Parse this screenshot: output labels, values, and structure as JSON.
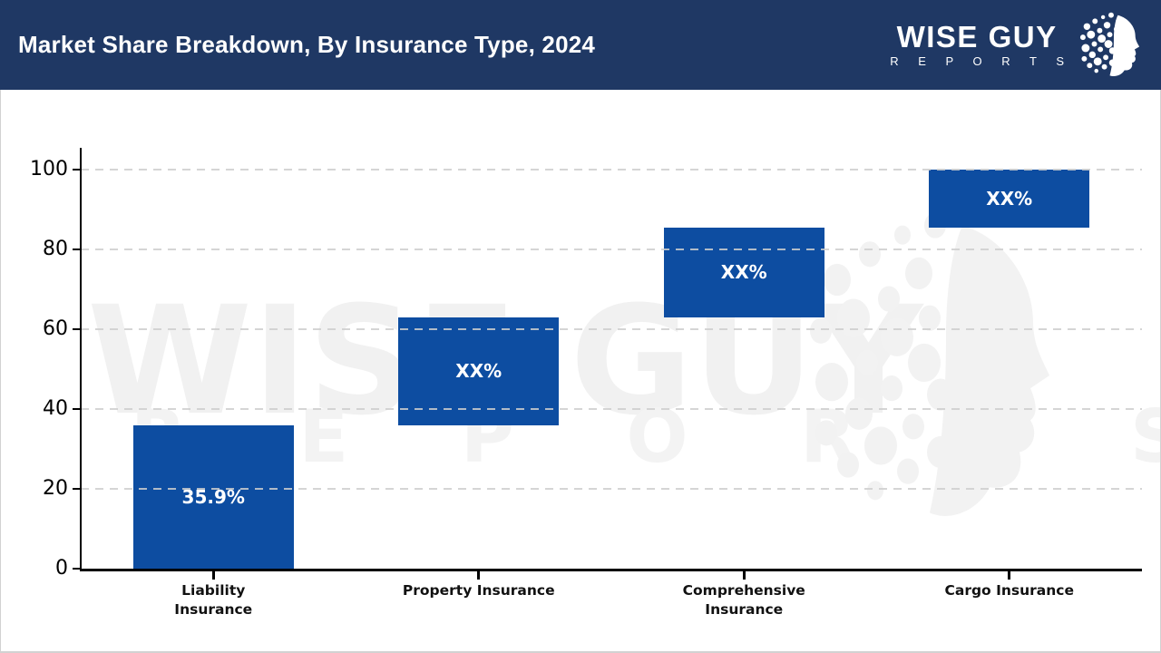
{
  "header": {
    "title": "Market Share Breakdown, By Insurance Type, 2024",
    "logo_line1": "WISE GUY",
    "logo_line2": "R E P O R T S"
  },
  "watermark": {
    "line1": "WISE GUY",
    "line2": "R E P O R T S"
  },
  "chart_data": {
    "type": "bar",
    "variant": "waterfall",
    "title": "Market Share Breakdown, By Insurance Type, 2024",
    "categories": [
      "Liability\nInsurance",
      "Property Insurance",
      "Comprehensive\nInsurance",
      "Cargo Insurance"
    ],
    "segments": [
      {
        "category": "Liability Insurance",
        "start": 0,
        "end": 35.9,
        "label": "35.9%"
      },
      {
        "category": "Property Insurance",
        "start": 35.9,
        "end": 63,
        "label": "XX%"
      },
      {
        "category": "Comprehensive Insurance",
        "start": 63,
        "end": 85.5,
        "label": "XX%"
      },
      {
        "category": "Cargo Insurance",
        "start": 85.5,
        "end": 100,
        "label": "XX%"
      }
    ],
    "xlabel": "",
    "ylabel": "",
    "ylim": [
      0,
      100
    ],
    "yticks": [
      0,
      20,
      40,
      60,
      80,
      100
    ],
    "grid": "horizontal-dashed",
    "legend": "none",
    "bar_color": "#0d4da1",
    "bar_label_color": "#ffffff"
  },
  "colors": {
    "header_bg": "#1f3864",
    "bar": "#0d4da1",
    "grid": "#cecece",
    "axis": "#000000",
    "watermark": "#f1f1f1"
  }
}
